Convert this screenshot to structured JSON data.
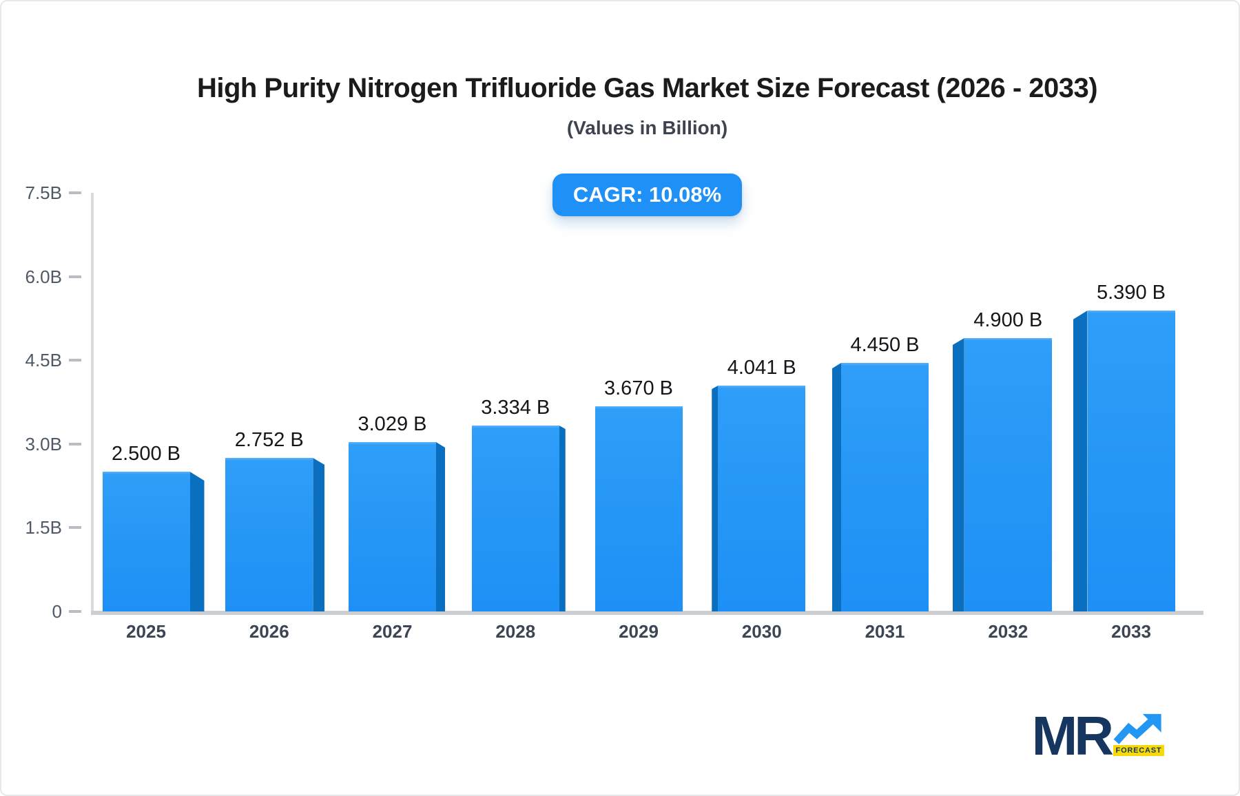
{
  "header": {
    "title": "High Purity Nitrogen Trifluoride Gas Market Size Forecast (2026 - 2033)",
    "subtitle": "(Values in Billion)",
    "cagr_badge": "CAGR: 10.08%"
  },
  "chart_data": {
    "type": "bar",
    "title": "High Purity Nitrogen Trifluoride Gas Market Size Forecast (2026 - 2033)",
    "subtitle": "(Values in Billion)",
    "categories": [
      "2025",
      "2026",
      "2027",
      "2028",
      "2029",
      "2030",
      "2031",
      "2032",
      "2033"
    ],
    "values": [
      2.5,
      2.752,
      3.029,
      3.334,
      3.67,
      4.041,
      4.45,
      4.9,
      5.39
    ],
    "bar_labels": [
      "2.500 B",
      "2.752 B",
      "3.029 B",
      "3.334 B",
      "3.670 B",
      "4.041 B",
      "4.450 B",
      "4.900 B",
      "5.390 B"
    ],
    "xlabel": "",
    "ylabel": "",
    "ylim": [
      0,
      7.5
    ],
    "y_ticks": [
      {
        "label": "7.5B",
        "value": 7.5
      },
      {
        "label": "6.0B",
        "value": 6.0
      },
      {
        "label": "4.5B",
        "value": 4.5
      },
      {
        "label": "3.0B",
        "value": 3.0
      },
      {
        "label": "1.5B",
        "value": 1.5
      },
      {
        "label": "0",
        "value": 0
      }
    ],
    "grid": false,
    "legend": false,
    "style": "3d-perspective-bars"
  },
  "colors": {
    "title": "#1b1b1e",
    "subtitle": "#3d4450",
    "badge_bg": "#1e90f6",
    "bar_face_top": "#2f9ef8",
    "bar_face_bottom": "#1e8ff5",
    "bar_side": "#0b6fc0",
    "axis_line": "#d8dade",
    "baseline": "#cbced2",
    "tick": "#b9bdc3",
    "y_label": "#4f5866",
    "x_label": "#3b4553",
    "data_label": "#14161a",
    "logo_navy": "#17365f",
    "logo_blue": "#2196f3",
    "logo_yellow": "#f7d908"
  },
  "logo": {
    "mr": "MR",
    "forecast": "FORECAST"
  }
}
